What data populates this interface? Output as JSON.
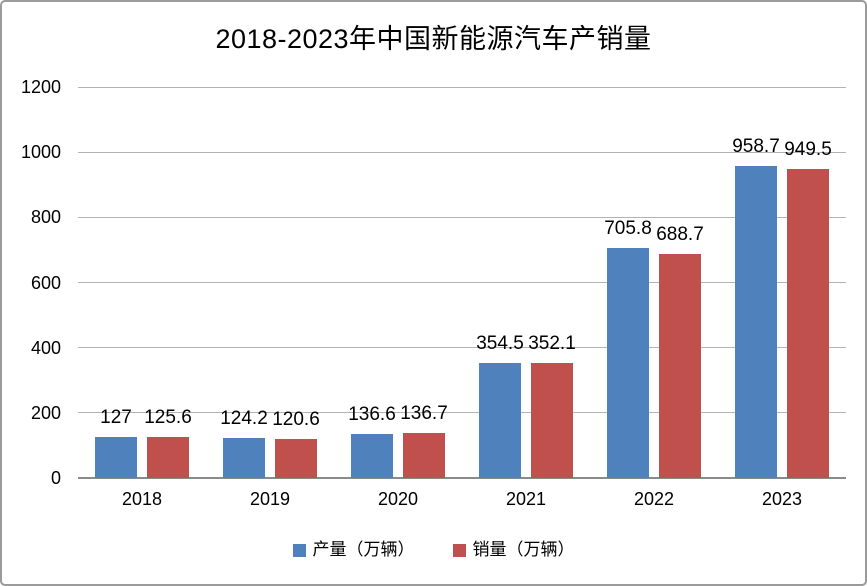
{
  "title": "2018-2023年中国新能源汽车产销量",
  "style": {
    "background": "#FFFFFF",
    "frame_border": "#9B9B9B",
    "gridline": "#B3B3B3",
    "axis_line": "#8A8A8A",
    "text": "#000000"
  },
  "chart_data": {
    "type": "bar",
    "title": "2018-2023年中国新能源汽车产销量",
    "categories": [
      "2018",
      "2019",
      "2020",
      "2021",
      "2022",
      "2023"
    ],
    "series": [
      {
        "key": "production",
        "name": "产量（万辆）",
        "color": "#4F81BD",
        "values": [
          127,
          124.2,
          136.6,
          354.5,
          705.8,
          958.7
        ]
      },
      {
        "key": "sales",
        "name": "销量（万辆）",
        "color": "#C0504D",
        "values": [
          125.6,
          120.6,
          136.7,
          352.1,
          688.7,
          949.5
        ]
      }
    ],
    "xlabel": "",
    "ylabel": "",
    "ylim": [
      0,
      1200
    ],
    "yticks": [
      0,
      200,
      400,
      600,
      800,
      1000,
      1200
    ],
    "grid": true,
    "data_labels": true,
    "legend_position": "bottom"
  }
}
